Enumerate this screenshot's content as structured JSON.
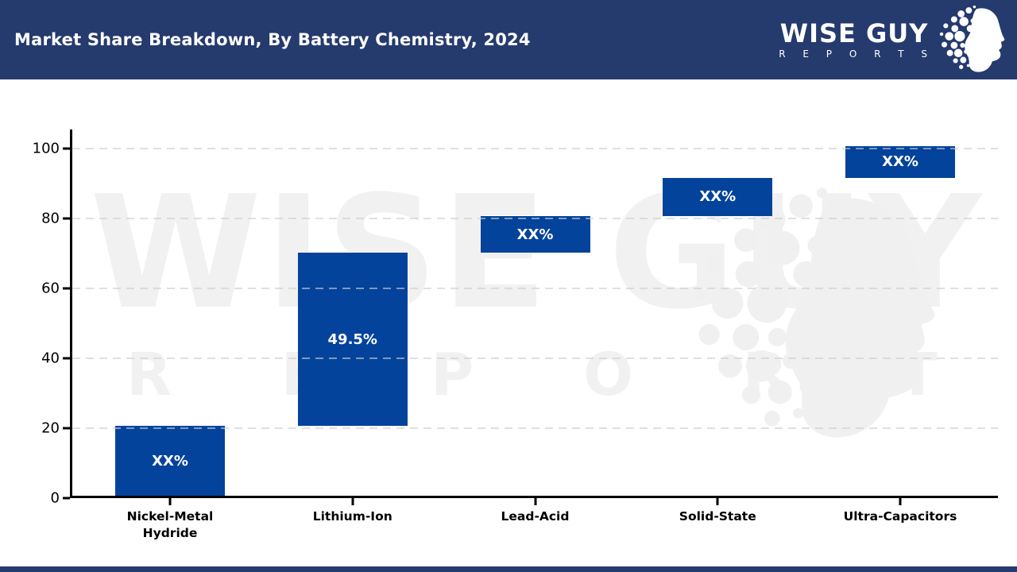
{
  "header": {
    "title": "Market Share Breakdown, By Battery Chemistry, 2024",
    "logo": {
      "line1": "WISE GUY",
      "line2": "REPORTS"
    }
  },
  "watermark": {
    "line1": "WISE GUY",
    "line2": "REPORTS"
  },
  "colors": {
    "header_bg": "#253A6D",
    "bar": "#04439B",
    "bar_label_text": "#ffffff",
    "axis": "#000000",
    "gridline": "#d9d9d9",
    "watermark": "#f1f1f1"
  },
  "chart_data": {
    "type": "bar",
    "subtype": "waterfall",
    "title": "Market Share Breakdown, By Battery Chemistry, 2024",
    "categories": [
      "Nickel-Metal Hydride",
      "Lithium-Ion",
      "Lead-Acid",
      "Solid-State",
      "Ultra-Capacitors"
    ],
    "segments": [
      {
        "category": "Nickel-Metal Hydride",
        "start": 0,
        "end": 20,
        "value": 20,
        "label": "XX%"
      },
      {
        "category": "Lithium-Ion",
        "start": 20,
        "end": 69.5,
        "value": 49.5,
        "label": "49.5%"
      },
      {
        "category": "Lead-Acid",
        "start": 69.5,
        "end": 80,
        "value": 10.5,
        "label": "XX%"
      },
      {
        "category": "Solid-State",
        "start": 80,
        "end": 91,
        "value": 11,
        "label": "XX%"
      },
      {
        "category": "Ultra-Capacitors",
        "start": 91,
        "end": 100,
        "value": 9,
        "label": "XX%"
      }
    ],
    "xlabel": "",
    "ylabel": "",
    "ylim": [
      0,
      105.5
    ],
    "yticks": [
      0,
      20,
      40,
      60,
      80,
      100
    ],
    "grid": "horizontal-dashed",
    "legend": "none"
  }
}
